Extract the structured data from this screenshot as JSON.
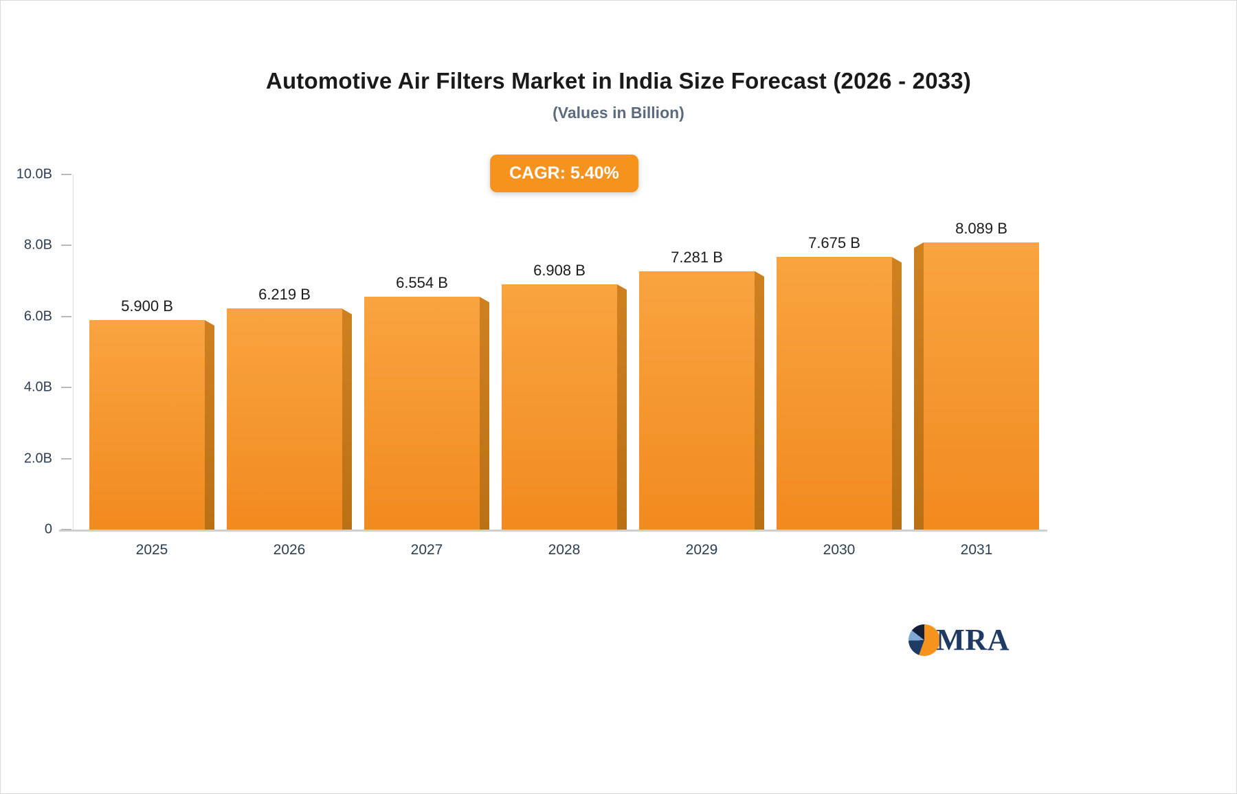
{
  "header": {
    "title": "Automotive Air Filters Market in India Size Forecast (2026 - 2033)",
    "subtitle": "(Values in Billion)"
  },
  "badge": {
    "label": "CAGR: 5.40%",
    "background": "#F6921E",
    "text_color": "#FFFFFF"
  },
  "chart_data": {
    "type": "bar",
    "title": "Automotive Air Filters Market in India Size Forecast (2026 - 2033)",
    "subtitle": "(Values in Billion)",
    "categories": [
      "2025",
      "2026",
      "2027",
      "2028",
      "2029",
      "2030",
      "2031"
    ],
    "values": [
      5.9,
      6.219,
      6.554,
      6.908,
      7.281,
      7.675,
      8.089
    ],
    "value_labels": [
      "5.900 B",
      "6.219 B",
      "6.554 B",
      "6.908 B",
      "7.281 B",
      "7.675 B",
      "8.089 B"
    ],
    "ylabel": "",
    "xlabel": "",
    "ylim": [
      0,
      10
    ],
    "y_ticks": [
      {
        "label": "10.0B",
        "value": 10
      },
      {
        "label": "8.0B",
        "value": 8
      },
      {
        "label": "6.0B",
        "value": 6
      },
      {
        "label": "4.0B",
        "value": 4
      },
      {
        "label": "2.0B",
        "value": 2
      },
      {
        "label": "0",
        "value": 0
      }
    ],
    "grid": false,
    "legend": "none",
    "bar_color": "#F79A2E",
    "bar_side_color": "#C4791B",
    "axis_text_color": "#2C3E50",
    "value_text_color": "#1B1B1B"
  },
  "logo": {
    "text": "MRA",
    "accent_orange": "#F6921E",
    "accent_navy": "#1F3A63"
  }
}
